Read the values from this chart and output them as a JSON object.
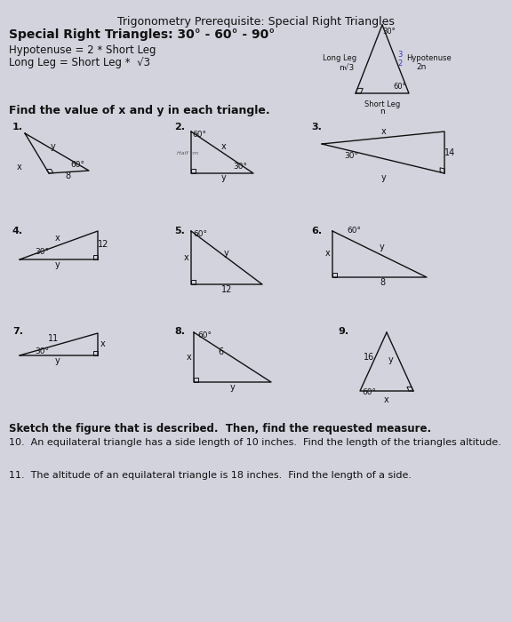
{
  "title": "Trigonometry Prerequisite: Special Right Triangles",
  "subtitle": "Special Right Triangles: 30° - 60° - 90°",
  "rule1": "Hypotenuse = 2 * Short Leg",
  "rule2": "Long Leg = Short Leg *  √3",
  "find_text": "Find the value of x and y in each triangle.",
  "sketch_text": "Sketch the figure that is described.  Then, find the requested measure.",
  "problem10": "10.  An equilateral triangle has a side length of 10 inches.  Find the length of the triangles altitude.",
  "problem11": "11.  The altitude of an equilateral triangle is 18 inches.  Find the length of a side.",
  "bg_color": "#d3d3de",
  "line_color": "#111111",
  "text_color": "#111111",
  "blue_color": "#3333bb"
}
